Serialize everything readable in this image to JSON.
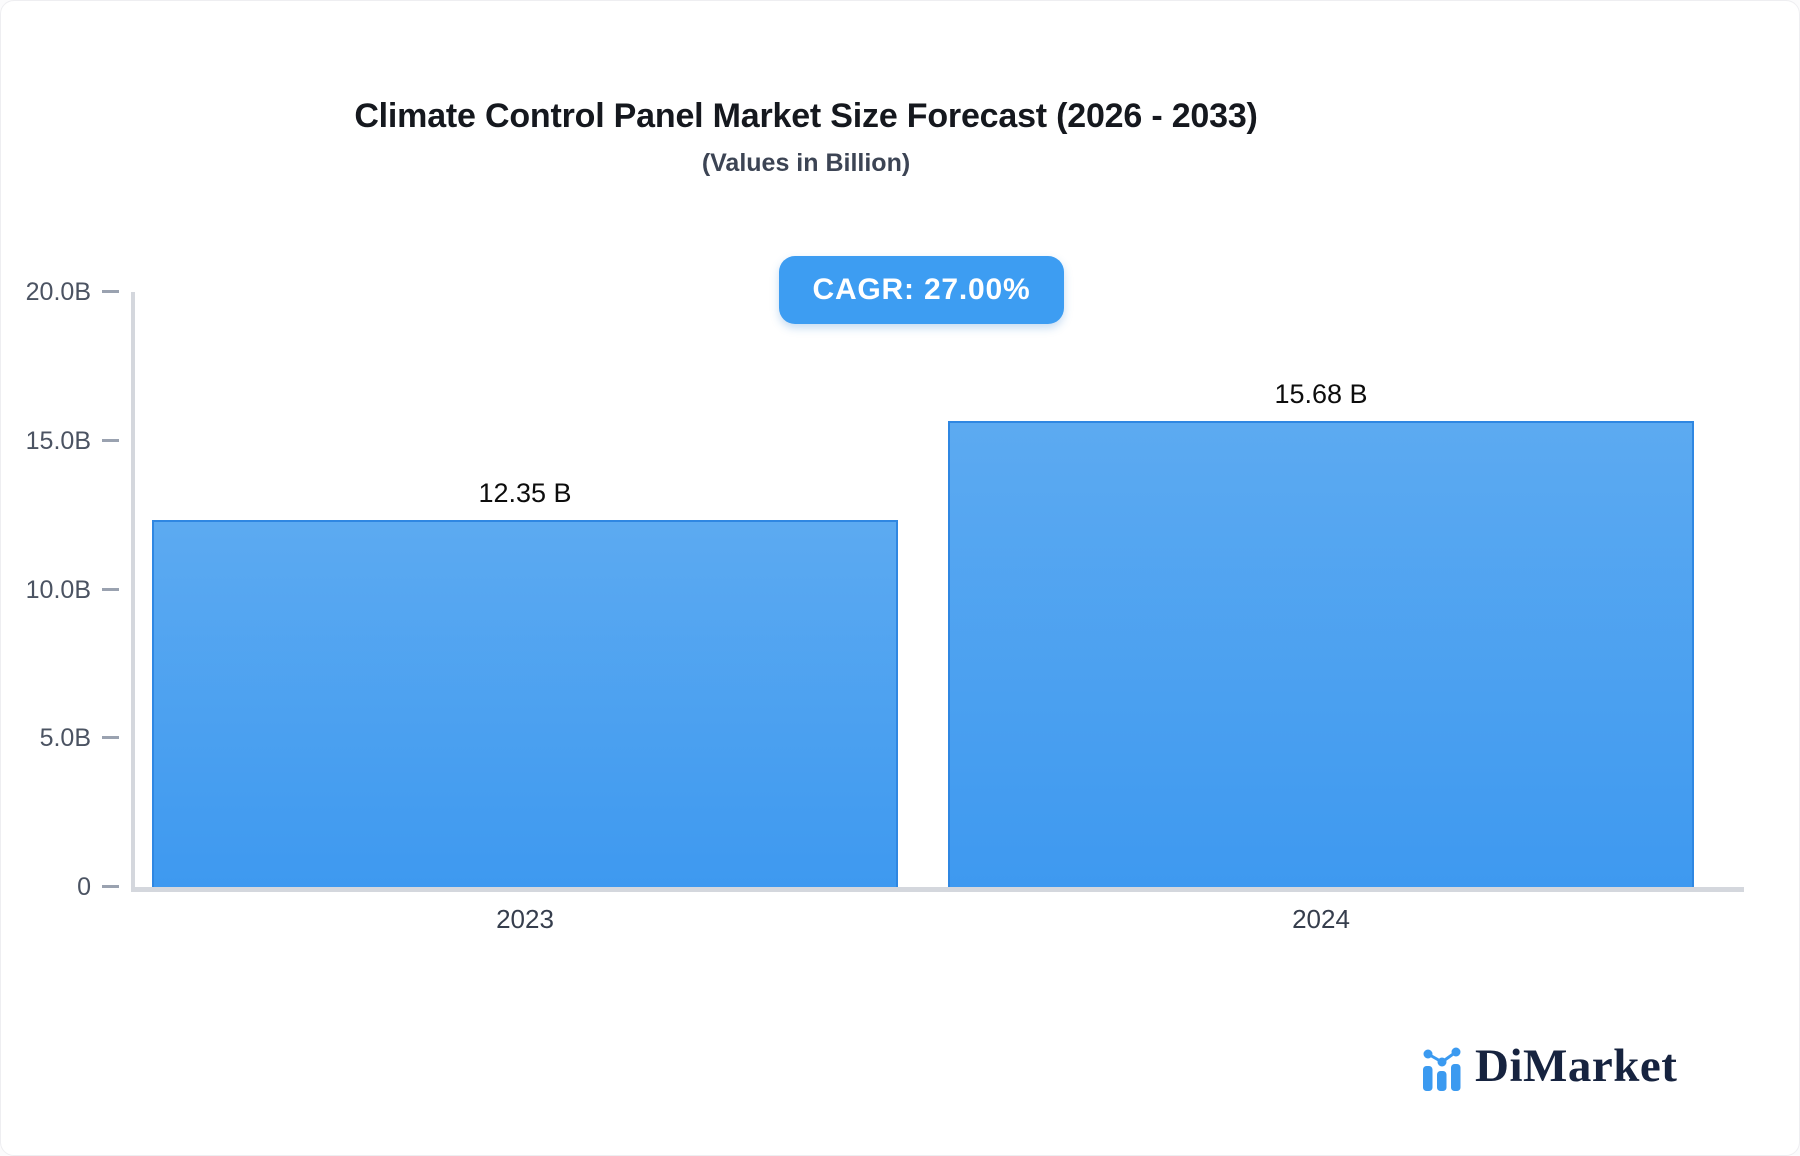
{
  "header": {
    "title": "Climate Control Panel Market Size Forecast (2026 - 2033)",
    "subtitle": "(Values in Billion)",
    "cagr_badge": "CAGR: 27.00%"
  },
  "chart_data": {
    "type": "bar",
    "title": "Climate Control Panel Market Size Forecast (2026 - 2033)",
    "subtitle": "(Values in Billion)",
    "cagr_percent": "27.00%",
    "categories": [
      "2023",
      "2024"
    ],
    "values": [
      12.35,
      15.68
    ],
    "value_labels": [
      "12.35 B",
      "15.68 B"
    ],
    "unit": "Billion",
    "xlabel": "",
    "ylabel": "",
    "ylim": [
      0,
      20
    ],
    "yticks": [
      0,
      5,
      10,
      15,
      20
    ],
    "ytick_labels": [
      "0",
      "5.0B",
      "10.0B",
      "15.0B",
      "20.0B"
    ],
    "grid": false,
    "legend": false
  },
  "branding": {
    "logo_text": "DiMarket",
    "logo_icon": "bar-line-chart-icon"
  },
  "colors": {
    "title_text": "#15181e",
    "subtitle_text": "#3c4454",
    "badge_bg": "#3d9df2",
    "badge_text": "#ffffff",
    "bar_top": "#5caaf1",
    "bar_bottom": "#3e99f0",
    "bar_border": "#2f87e2",
    "axis_line": "#d4d7dd",
    "tick_dash": "#9aa2b0",
    "tick_text": "#4b5362",
    "xtick_text": "#363e4d",
    "value_label_text": "#0d0d0d",
    "logo_navy": "#16233f",
    "logo_blue": "#3b9af0"
  }
}
